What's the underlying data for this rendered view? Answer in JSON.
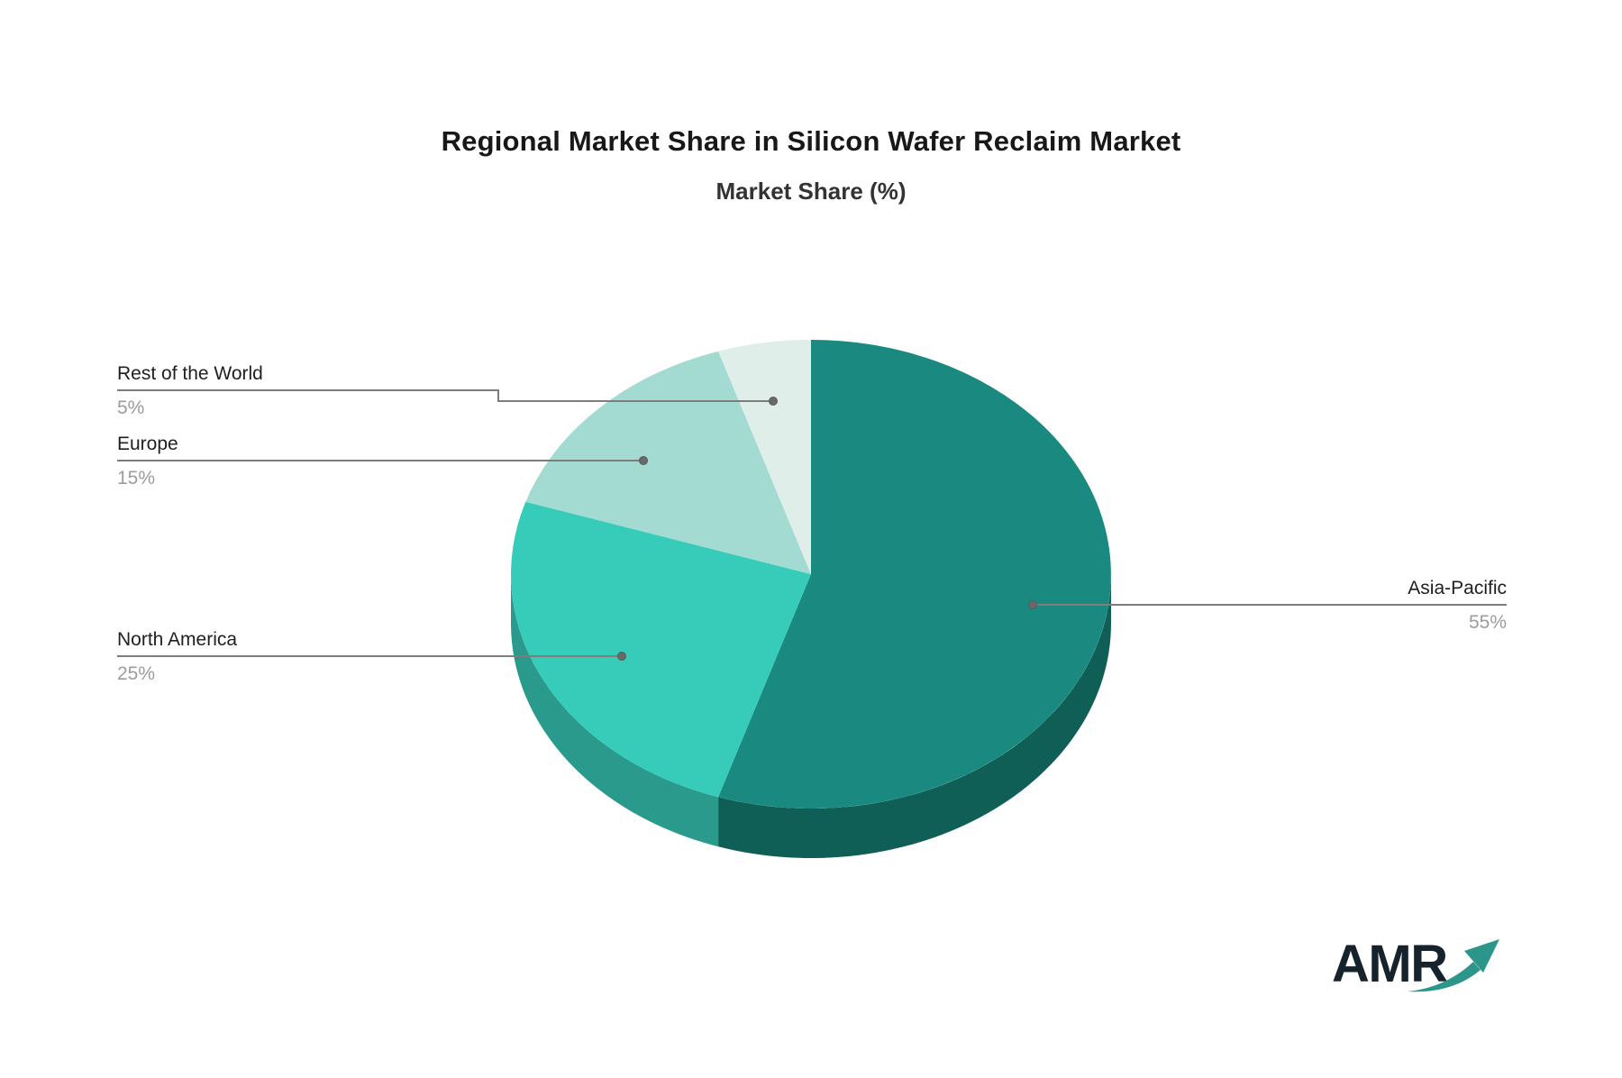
{
  "title": "Regional Market Share in Silicon Wafer Reclaim Market",
  "subtitle": "Market Share (%)",
  "logo": {
    "text": "AMR",
    "accent_color": "#2d968b",
    "text_color": "#16222c"
  },
  "connector_color": "#7d7d7d",
  "chart_data": {
    "type": "pie",
    "title": "Regional Market Share in Silicon Wafer Reclaim Market",
    "subtitle": "Market Share (%)",
    "unit": "%",
    "is_3d": true,
    "start_angle_deg": 0,
    "direction": "clockwise",
    "legend_position": "none",
    "background": "#ffffff",
    "slices": [
      {
        "name": "Asia-Pacific",
        "value": 55,
        "label": "55%",
        "color": "#1a8a80",
        "side_color": "#105f57"
      },
      {
        "name": "North America",
        "value": 25,
        "label": "25%",
        "color": "#36ccb9",
        "side_color": "#2a9a8d"
      },
      {
        "name": "Europe",
        "value": 15,
        "label": "15%",
        "color": "#a3dbd3",
        "side_color": "#8fc9c0"
      },
      {
        "name": "Rest of the World",
        "value": 5,
        "label": "5%",
        "color": "#dfeee9",
        "side_color": "#c4d6d1"
      }
    ]
  }
}
